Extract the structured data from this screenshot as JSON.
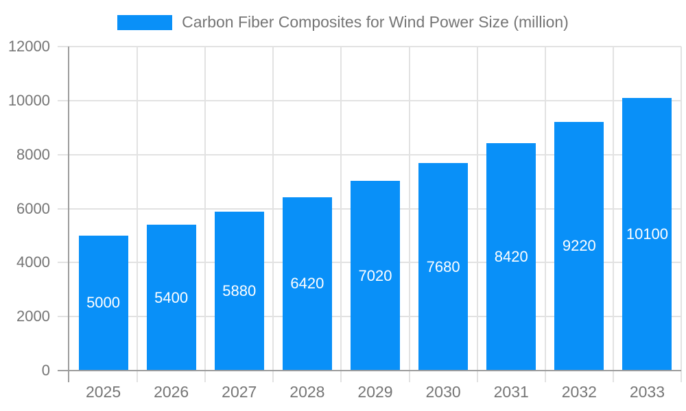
{
  "chart_data": {
    "type": "bar",
    "title": "Carbon Fiber Composites for Wind Power Size (million)",
    "legend": {
      "position": "top",
      "label": "Carbon Fiber Composites for Wind Power Size (million)"
    },
    "categories": [
      "2025",
      "2026",
      "2027",
      "2028",
      "2029",
      "2030",
      "2031",
      "2032",
      "2033"
    ],
    "values": [
      5000,
      5400,
      5880,
      6420,
      7020,
      7680,
      8420,
      9220,
      10100
    ],
    "value_labels": [
      "5000",
      "5400",
      "5880",
      "6420",
      "7020",
      "7680",
      "8420",
      "9220",
      "10100"
    ],
    "xlabel": "",
    "ylabel": "",
    "ylim": [
      0,
      12000
    ],
    "ytick_step": 2000,
    "yticks": [
      0,
      2000,
      4000,
      6000,
      8000,
      10000,
      12000
    ],
    "grid": true,
    "colors": {
      "bar": "#0990F8",
      "bar_value_text": "#FFFFFF",
      "axis_text": "#757575",
      "gridline": "#E2E2E2",
      "axis_line": "#9C9C9C",
      "background": "#FFFFFF"
    }
  }
}
